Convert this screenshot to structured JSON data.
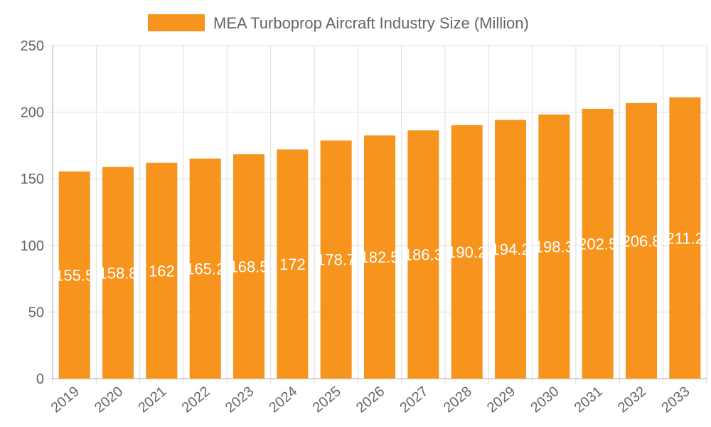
{
  "chart_data": {
    "type": "bar",
    "title": "",
    "legend": [
      {
        "name": "MEA Turboprop Aircraft Industry Size (Million)",
        "color": "#f7941d"
      }
    ],
    "legend_position": "top",
    "categories": [
      "2019",
      "2020",
      "2021",
      "2022",
      "2023",
      "2024",
      "2025",
      "2026",
      "2027",
      "2028",
      "2029",
      "2030",
      "2031",
      "2032",
      "2033"
    ],
    "series": [
      {
        "name": "MEA Turboprop Aircraft Industry Size (Million)",
        "values": [
          155.5,
          158.8,
          162,
          165.2,
          168.5,
          172,
          178.7,
          182.5,
          186.3,
          190.2,
          194.2,
          198.3,
          202.5,
          206.8,
          211.2
        ]
      }
    ],
    "data_labels": [
      "155.5",
      "158.8",
      "162",
      "165.2",
      "168.5",
      "172",
      "178.7",
      "182.5",
      "186.3",
      "190.2",
      "194.2",
      "198.3",
      "202.5",
      "206.8",
      "211.2"
    ],
    "ylim": [
      0,
      250
    ],
    "yticks": [
      "0",
      "50",
      "100",
      "150",
      "200",
      "250"
    ],
    "grid": true,
    "colors": {
      "bar": "#f7941d",
      "grid": "#dddddd",
      "axis_text": "#666666",
      "label": "#ffffff"
    }
  }
}
